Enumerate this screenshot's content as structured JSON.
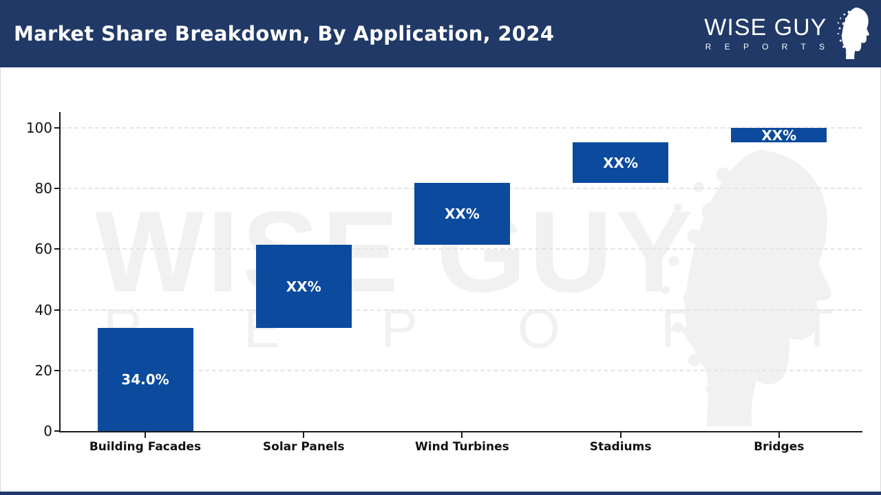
{
  "header": {
    "title": "Market Share Breakdown, By Application, 2024",
    "brand": {
      "line1": "WISE GUY",
      "line2": "R E P O R T S"
    }
  },
  "watermark": {
    "line1": "WISE GUY",
    "line2": "R E P O R T S"
  },
  "chart_data": {
    "type": "bar",
    "subtype": "waterfall",
    "title": "Market Share Breakdown, By Application, 2024",
    "categories": [
      "Building Facades",
      "Solar Panels",
      "Wind Turbines",
      "Stadiums",
      "Bridges"
    ],
    "segments": [
      {
        "category": "Building Facades",
        "start": 0,
        "end": 34,
        "label": "34.0%"
      },
      {
        "category": "Solar Panels",
        "start": 34,
        "end": 61.4,
        "label": "XX%"
      },
      {
        "category": "Wind Turbines",
        "start": 61.4,
        "end": 81.8,
        "label": "XX%"
      },
      {
        "category": "Stadiums",
        "start": 81.8,
        "end": 95.2,
        "label": "XX%"
      },
      {
        "category": "Bridges",
        "start": 95.2,
        "end": 100,
        "label": "XX%"
      }
    ],
    "yticks": [
      0,
      20,
      40,
      60,
      80,
      100
    ],
    "ylim": [
      0,
      100
    ],
    "ylabel": "",
    "xlabel": "",
    "grid": "horizontal-dashed",
    "legend": "none"
  },
  "colors": {
    "header_bg": "#203966",
    "footer_bg": "#203966",
    "bar": "#0b4a9d",
    "bar_label": "#ffffff",
    "grid": "#e4e4e4",
    "axis": "#1a1a1a",
    "watermark": "#f1f1f1",
    "title_text": "#ffffff"
  }
}
